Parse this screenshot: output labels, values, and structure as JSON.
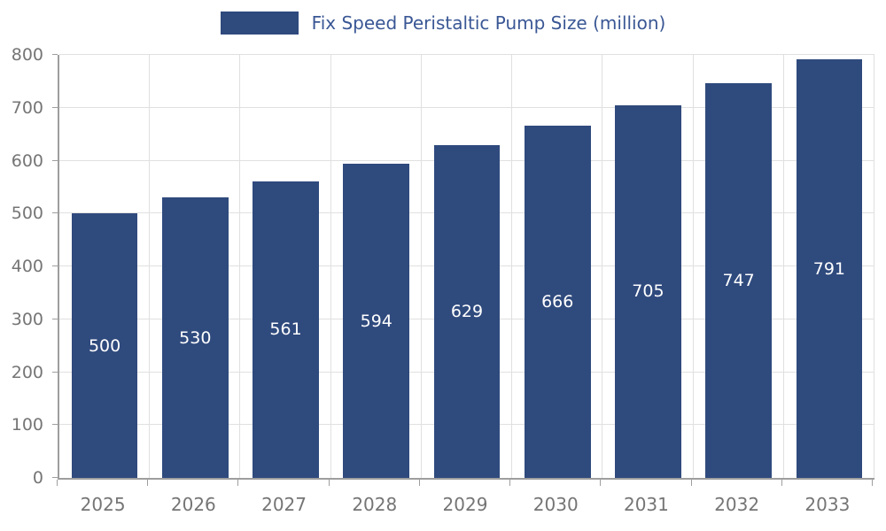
{
  "chart_data": {
    "type": "bar",
    "title": "Fix Speed Peristaltic Pump Size (million)",
    "categories": [
      "2025",
      "2026",
      "2027",
      "2028",
      "2029",
      "2030",
      "2031",
      "2032",
      "2033"
    ],
    "values": [
      500,
      530,
      561,
      594,
      629,
      666,
      705,
      747,
      791
    ],
    "xlabel": "",
    "ylabel": "",
    "ylim": [
      0,
      800
    ],
    "ytick_step": 100,
    "grid": true,
    "legend_position": "top",
    "bar_color": "#2f4a7d",
    "title_color": "#3a5795",
    "value_label_color": "#ffffff",
    "axis_label_color": "#757575",
    "gridline_color": "#e0e0e0",
    "axis_line_color": "#9e9e9e"
  }
}
